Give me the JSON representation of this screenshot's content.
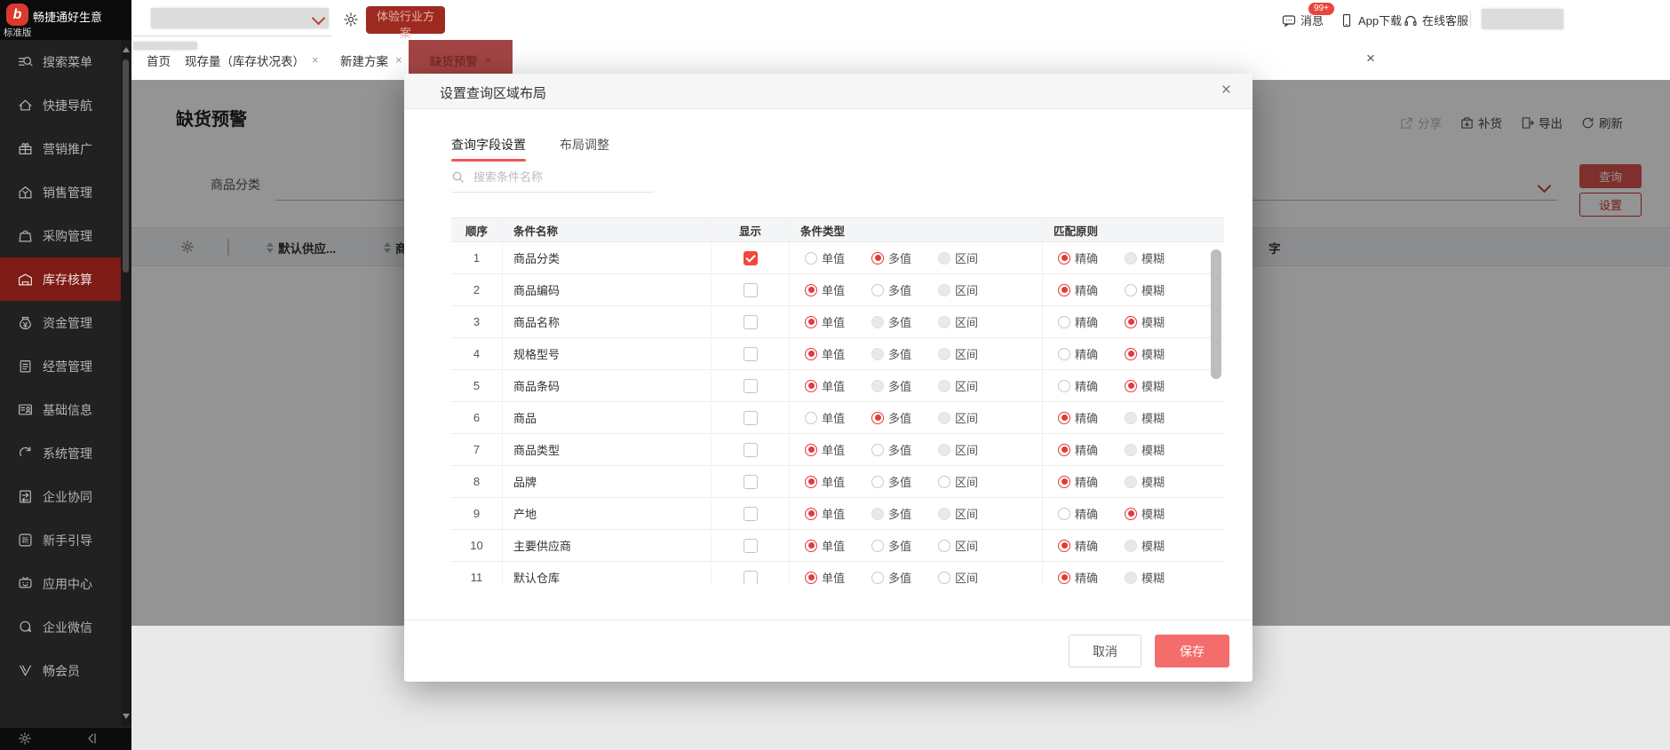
{
  "brand": {
    "logo_title": "畅捷通好生意",
    "edition": "标准版"
  },
  "topbar": {
    "trial_button": "体验行业方案",
    "messages_label": "消息",
    "messages_badge": "99+",
    "app_download_label": "App下载",
    "support_label": "在线客服"
  },
  "sidebar": {
    "items": [
      {
        "id": "search-menu",
        "label": "搜索菜单",
        "icon": "search-menu-icon",
        "active": false
      },
      {
        "id": "quick-nav",
        "label": "快捷导航",
        "icon": "home-icon",
        "active": false
      },
      {
        "id": "marketing",
        "label": "营销推广",
        "icon": "gift-icon",
        "active": false
      },
      {
        "id": "sales",
        "label": "销售管理",
        "icon": "sale-icon",
        "active": false
      },
      {
        "id": "purchase",
        "label": "采购管理",
        "icon": "bag-icon",
        "active": false
      },
      {
        "id": "inventory",
        "label": "库存核算",
        "icon": "warehouse-icon",
        "active": true
      },
      {
        "id": "funds",
        "label": "资金管理",
        "icon": "money-icon",
        "active": false
      },
      {
        "id": "operation",
        "label": "经营管理",
        "icon": "clipboard-icon",
        "active": false
      },
      {
        "id": "basic-info",
        "label": "基础信息",
        "icon": "idcard-icon",
        "active": false
      },
      {
        "id": "system",
        "label": "系统管理",
        "icon": "sync-icon",
        "active": false
      },
      {
        "id": "collaboration",
        "label": "企业协同",
        "icon": "collab-icon",
        "active": false
      },
      {
        "id": "newbie-guide",
        "label": "新手引导",
        "icon": "newbie-icon",
        "active": false
      },
      {
        "id": "app-center",
        "label": "应用中心",
        "icon": "appcenter-icon",
        "active": false
      },
      {
        "id": "wecom",
        "label": "企业微信",
        "icon": "wechat-icon",
        "active": false
      },
      {
        "id": "member",
        "label": "畅会员",
        "icon": "member-icon",
        "active": false
      }
    ]
  },
  "tabs": {
    "items": [
      {
        "label": "首页",
        "closable": false,
        "active": false
      },
      {
        "label": "现存量（库存状况表）",
        "closable": true,
        "active": false
      },
      {
        "label": "新建方案",
        "closable": true,
        "active": false
      },
      {
        "label": "缺货预警",
        "closable": true,
        "active": true
      }
    ]
  },
  "page": {
    "title": "缺货预警",
    "toolbar": [
      {
        "label": "分享",
        "icon": "share-icon",
        "disabled": true
      },
      {
        "label": "补货",
        "icon": "replenish-icon",
        "disabled": false
      },
      {
        "label": "导出",
        "icon": "export-icon",
        "disabled": false
      },
      {
        "label": "刷新",
        "icon": "refresh-icon",
        "disabled": false
      }
    ],
    "filter_label": "商品分类",
    "query_button": "查询",
    "settings_button": "设置",
    "grid_columns": [
      "默认供应...",
      "商品"
    ],
    "grid_column_partial": "字"
  },
  "modal": {
    "title": "设置查询区域布局",
    "tabs": [
      {
        "label": "查询字段设置",
        "active": true
      },
      {
        "label": "布局调整",
        "active": false
      }
    ],
    "search_placeholder": "搜索条件名称",
    "table": {
      "headers": [
        "顺序",
        "条件名称",
        "显示",
        "条件类型",
        "匹配原则"
      ],
      "type_options": [
        "单值",
        "多值",
        "区间"
      ],
      "match_options": [
        "精确",
        "模糊"
      ],
      "rows": [
        {
          "order": "1",
          "name": "商品分类",
          "checked": true,
          "type": [
            "off",
            "on",
            "dis"
          ],
          "match": [
            "on",
            "dis"
          ]
        },
        {
          "order": "2",
          "name": "商品编码",
          "checked": false,
          "type": [
            "on",
            "off",
            "dis"
          ],
          "match": [
            "on",
            "off"
          ]
        },
        {
          "order": "3",
          "name": "商品名称",
          "checked": false,
          "type": [
            "on",
            "dis",
            "dis"
          ],
          "match": [
            "off",
            "on"
          ]
        },
        {
          "order": "4",
          "name": "规格型号",
          "checked": false,
          "type": [
            "on",
            "dis",
            "dis"
          ],
          "match": [
            "off",
            "on"
          ]
        },
        {
          "order": "5",
          "name": "商品条码",
          "checked": false,
          "type": [
            "on",
            "dis",
            "dis"
          ],
          "match": [
            "off",
            "on"
          ]
        },
        {
          "order": "6",
          "name": "商品",
          "checked": false,
          "type": [
            "off",
            "on",
            "dis"
          ],
          "match": [
            "on",
            "dis"
          ]
        },
        {
          "order": "7",
          "name": "商品类型",
          "checked": false,
          "type": [
            "on",
            "off",
            "dis"
          ],
          "match": [
            "on",
            "dis"
          ]
        },
        {
          "order": "8",
          "name": "品牌",
          "checked": false,
          "type": [
            "on",
            "off",
            "off"
          ],
          "match": [
            "on",
            "dis"
          ]
        },
        {
          "order": "9",
          "name": "产地",
          "checked": false,
          "type": [
            "on",
            "dis",
            "dis"
          ],
          "match": [
            "off",
            "on"
          ]
        },
        {
          "order": "10",
          "name": "主要供应商",
          "checked": false,
          "type": [
            "on",
            "off",
            "off"
          ],
          "match": [
            "on",
            "dis"
          ]
        },
        {
          "order": "11",
          "name": "默认仓库",
          "checked": false,
          "type": [
            "on",
            "off",
            "off"
          ],
          "match": [
            "on",
            "dis"
          ]
        }
      ]
    },
    "cancel_button": "取消",
    "save_button": "保存"
  },
  "colors": {
    "accent_red": "#e23c38",
    "save_red": "#f56c6c",
    "dark_red_button": "#9d2a20",
    "active_tab_red": "#a34444",
    "sidebar_active_red": "#7e1b16"
  }
}
